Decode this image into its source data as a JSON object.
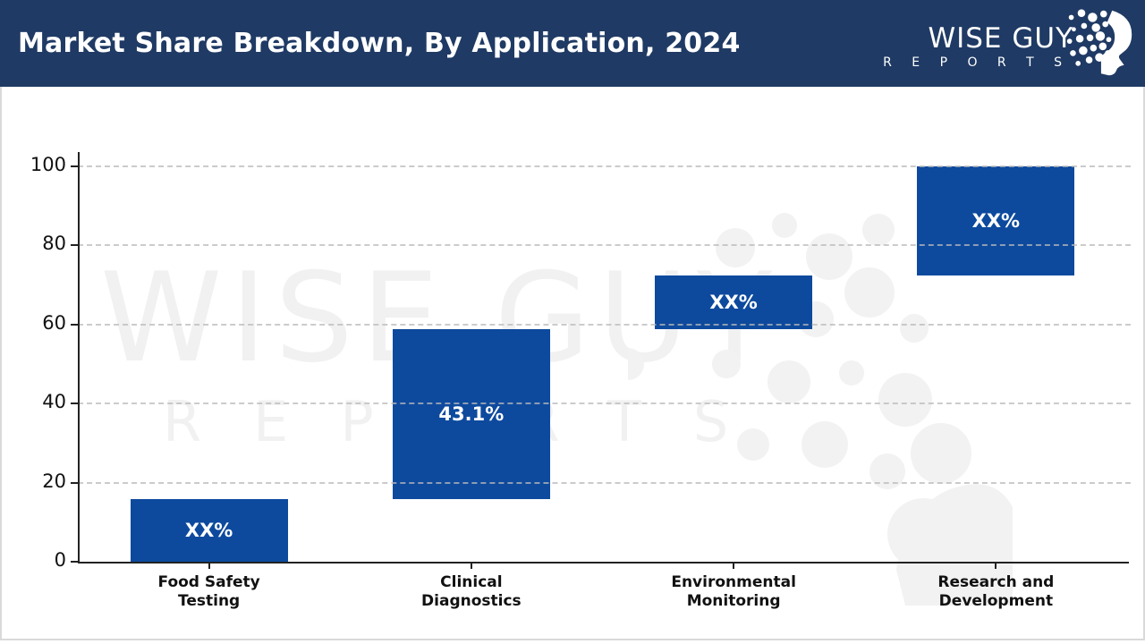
{
  "header": {
    "title": "Market Share Breakdown, By Application, 2024",
    "logo": {
      "line1": "WISE GUY",
      "line2": "R E P O R T S"
    }
  },
  "watermark": {
    "line1": "WISE GUY",
    "line2": "REPORTS"
  },
  "chart_data": {
    "type": "bar",
    "subtype": "floating-waterfall",
    "title": "Market Share Breakdown, By Application, 2024",
    "xlabel": "",
    "ylabel": "",
    "categories": [
      "Food Safety\nTesting",
      "Clinical\nDiagnostics",
      "Environmental\nMonitoring",
      "Research and\nDevelopment"
    ],
    "segments": [
      {
        "category": "Food Safety Testing",
        "start": 0,
        "end": 15.8,
        "value_label": "XX%"
      },
      {
        "category": "Clinical Diagnostics",
        "start": 15.8,
        "end": 58.9,
        "value_label": "43.1%"
      },
      {
        "category": "Environmental Monitoring",
        "start": 58.9,
        "end": 72.5,
        "value_label": "XX%"
      },
      {
        "category": "Research and Development",
        "start": 72.5,
        "end": 100,
        "value_label": "XX%"
      }
    ],
    "yticks": [
      0,
      20,
      40,
      60,
      80,
      100
    ],
    "ylim": [
      0,
      104
    ],
    "grid": "horizontal-dashed",
    "legend": "none",
    "bar_color": "#0d4a9e",
    "header_color": "#1f3a64",
    "grid_color": "#bbbbbb",
    "axis_color": "#222222"
  }
}
